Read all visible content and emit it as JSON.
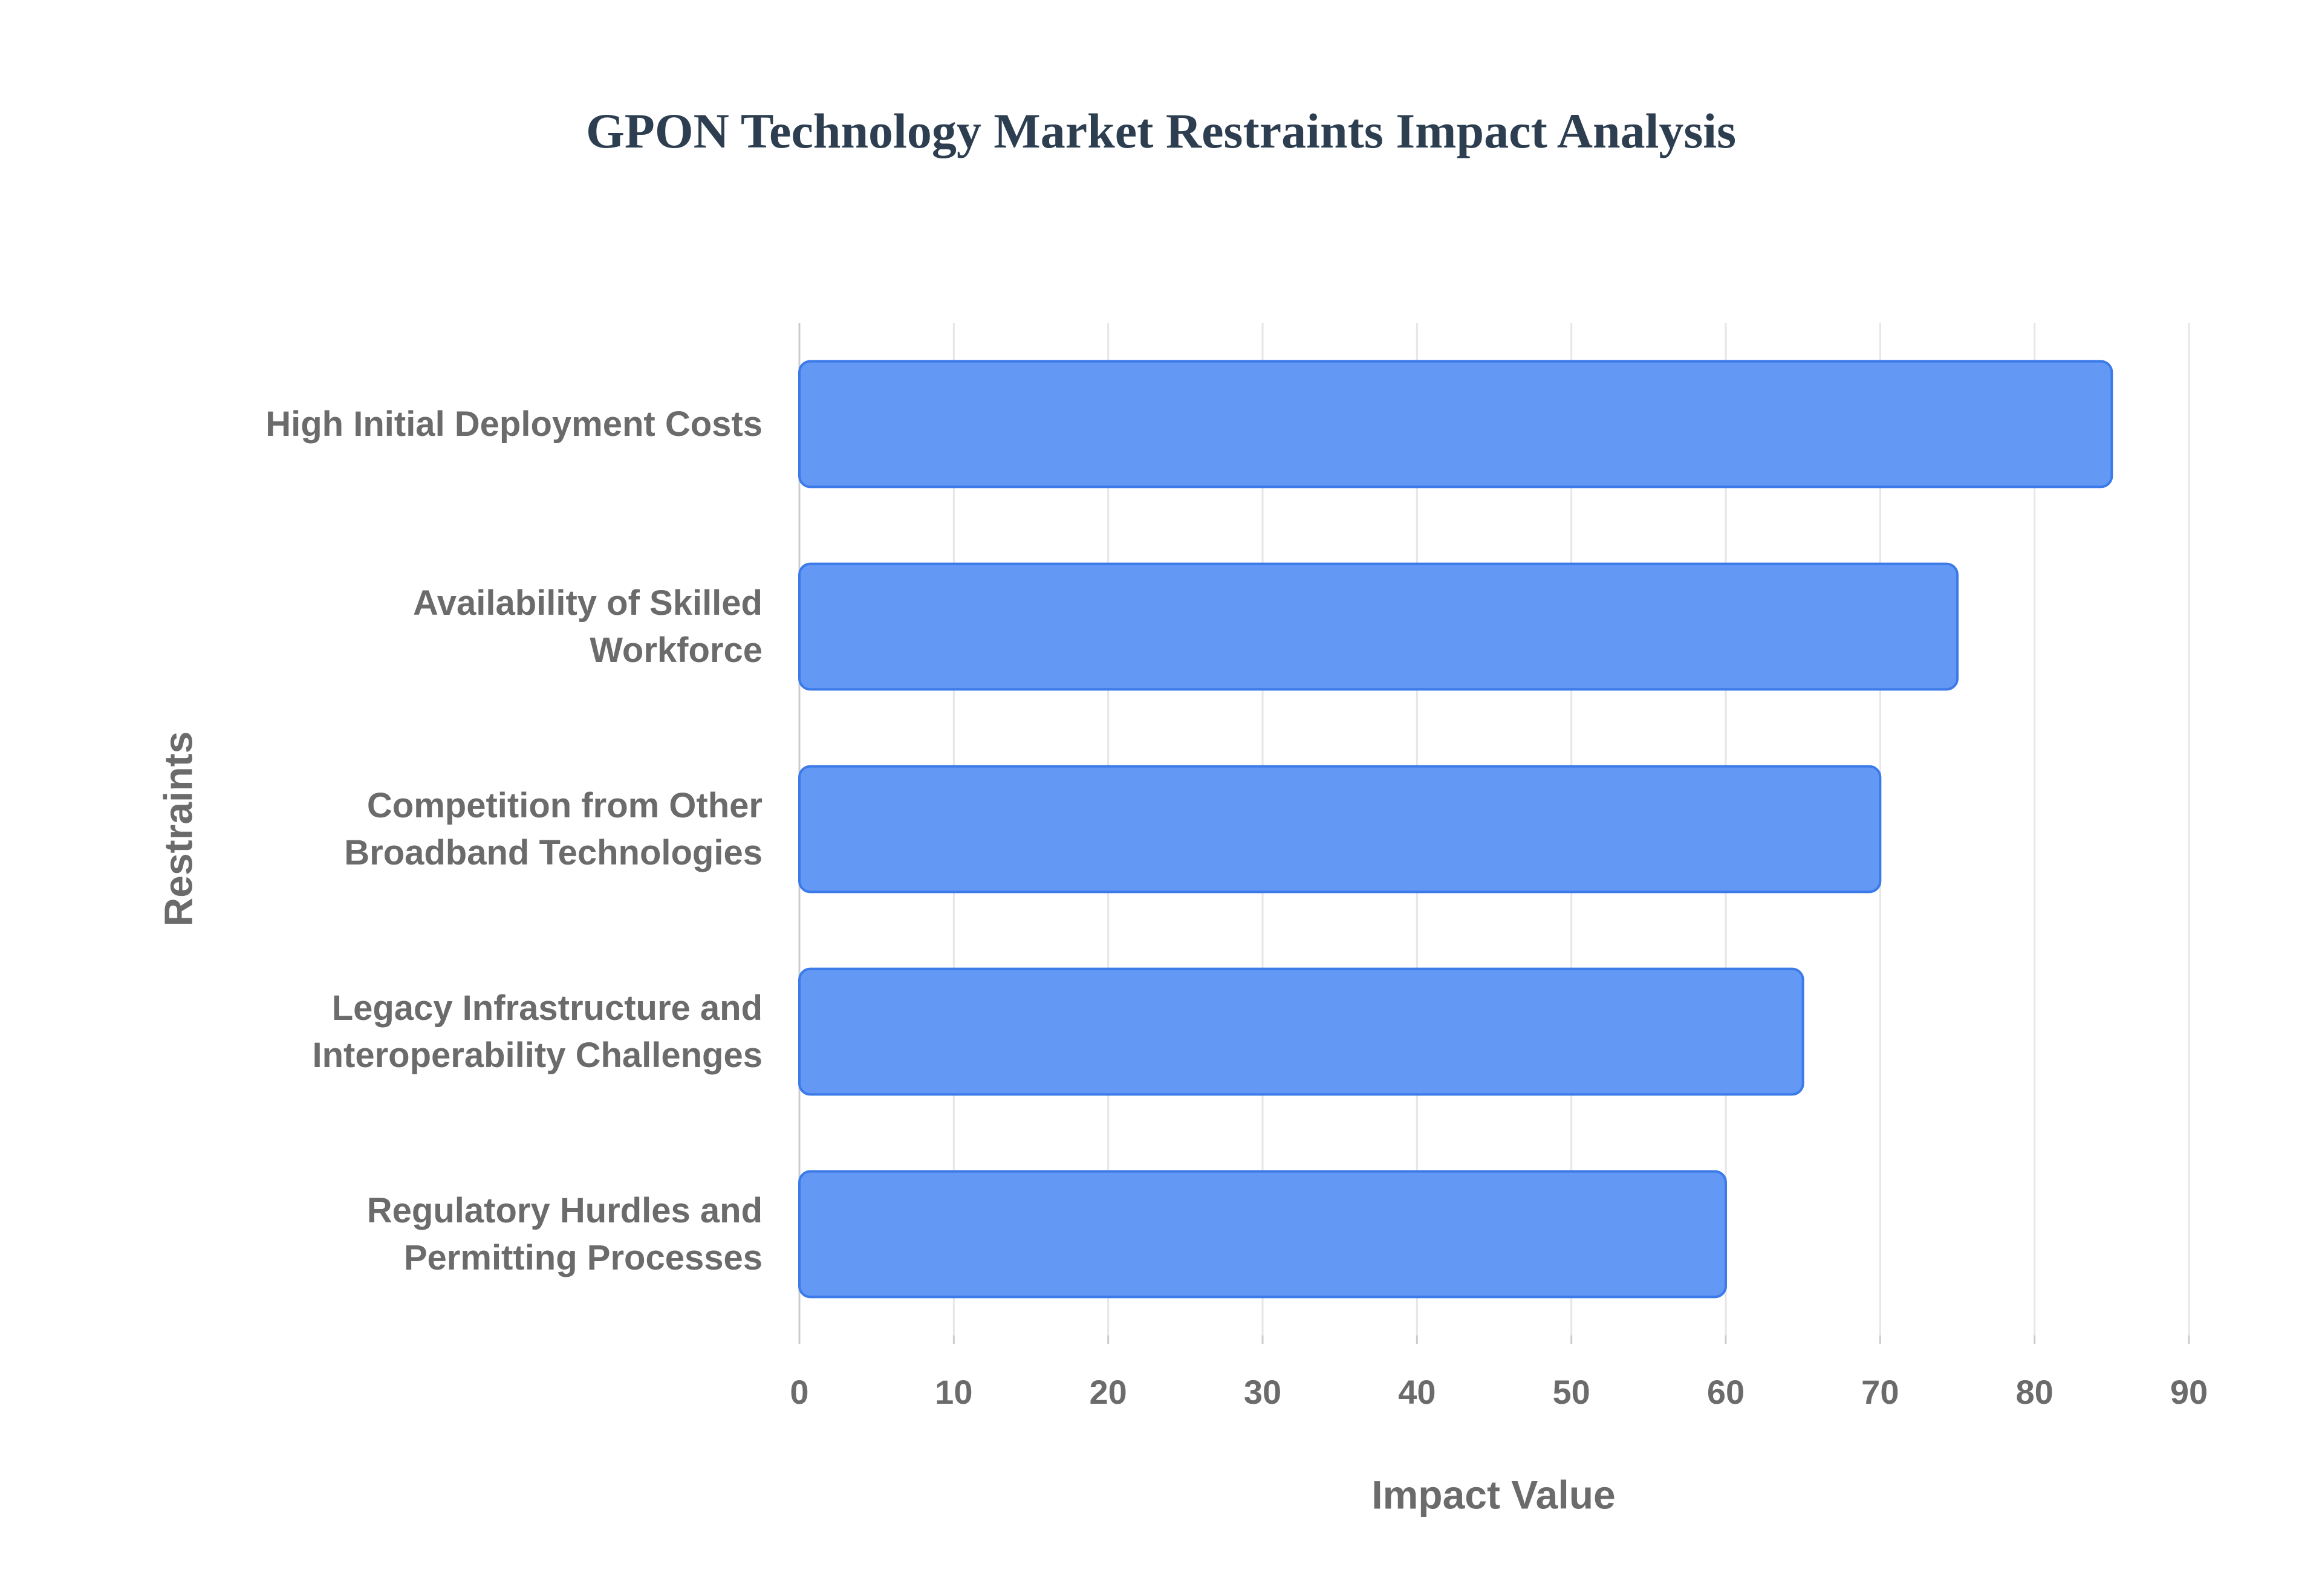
{
  "chart_data": {
    "type": "bar",
    "orientation": "horizontal",
    "title": "GPON Technology Market Restraints Impact Analysis",
    "x_label": "Impact Value",
    "y_label": "Restraints",
    "categories": [
      "High Initial Deployment Costs",
      "Availability of Skilled\nWorkforce",
      "Competition from Other\nBroadband Technologies",
      "Legacy Infrastructure and\nInteroperability Challenges",
      "Regulatory Hurdles and\nPermitting Processes"
    ],
    "values": [
      85,
      75,
      70,
      65,
      60
    ],
    "color": "#6399f5",
    "edge_color": "#3b7ae8",
    "xlim": [
      0,
      90
    ],
    "xticks": [
      0,
      10,
      20,
      30,
      40,
      50,
      60,
      70,
      80,
      90
    ],
    "grid": true
  }
}
